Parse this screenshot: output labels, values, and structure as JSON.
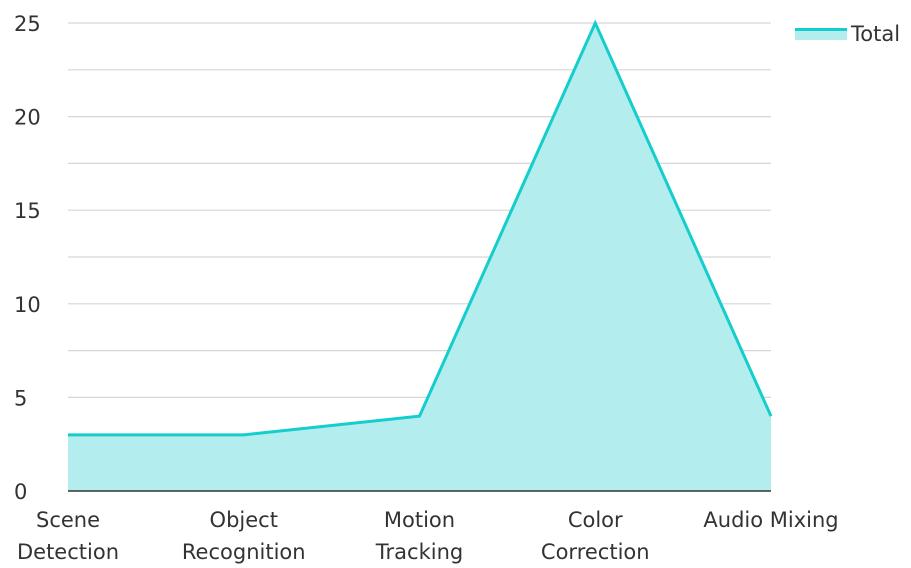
{
  "chart_data": {
    "type": "area",
    "categories": [
      [
        "Scene",
        "Detection"
      ],
      [
        "Object",
        "Recognition"
      ],
      [
        "Motion",
        "Tracking"
      ],
      [
        "Color",
        "Correction"
      ],
      [
        "Audio Mixing"
      ]
    ],
    "series": [
      {
        "name": "Total",
        "values": [
          3,
          3,
          4,
          25,
          4
        ]
      }
    ],
    "yticks": [
      0,
      5,
      10,
      15,
      20,
      25
    ],
    "ylim": [
      0,
      25
    ],
    "grid": true,
    "legend": "top-right",
    "colors": {
      "line": "#14cdcd",
      "fill": "#b3eded",
      "grid": "#cccccc",
      "axis": "#333333"
    }
  }
}
